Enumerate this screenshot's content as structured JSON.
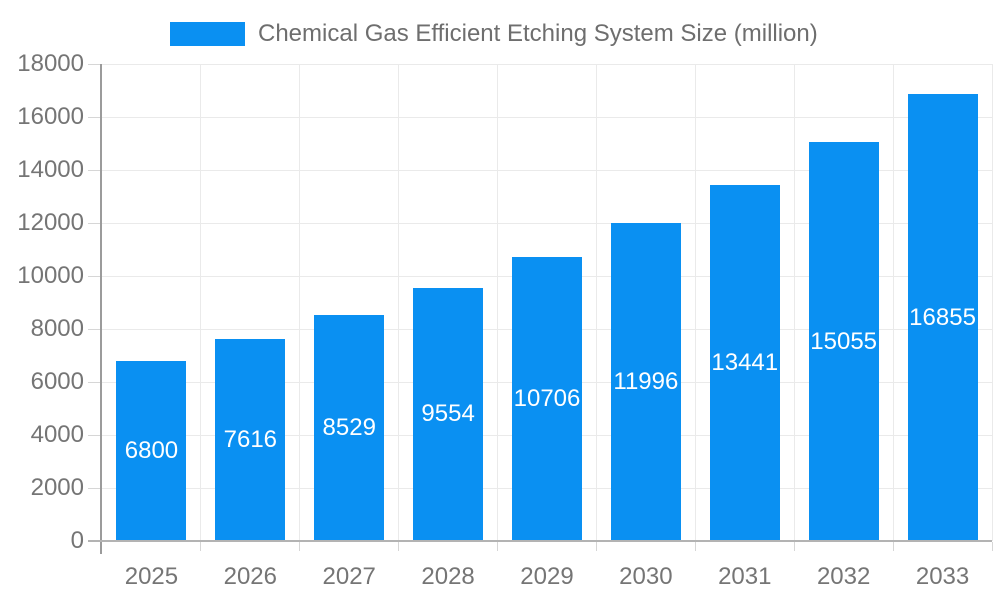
{
  "chart_data": {
    "type": "bar",
    "title": "Chemical Gas Efficient Etching System Size (million)",
    "categories": [
      "2025",
      "2026",
      "2027",
      "2028",
      "2029",
      "2030",
      "2031",
      "2032",
      "2033"
    ],
    "values": [
      6800,
      7616,
      8529,
      9554,
      10706,
      11996,
      13441,
      15055,
      16855
    ],
    "xlabel": "",
    "ylabel": "",
    "ylim": [
      0,
      18000
    ],
    "yticks": [
      0,
      2000,
      4000,
      6000,
      8000,
      10000,
      12000,
      14000,
      16000,
      18000
    ],
    "grid": true,
    "legend_position": "top",
    "value_label_position": "inside-center"
  },
  "colors": {
    "accent": "#0a90f2",
    "value_label_text": "#ffffff",
    "axis_text": "#757575",
    "legend_text": "#6e6e6e",
    "gridline": "#eaeaea",
    "axis_line": "#9b9b9b",
    "baseline": "#b3b3b3",
    "background": "#ffffff"
  }
}
